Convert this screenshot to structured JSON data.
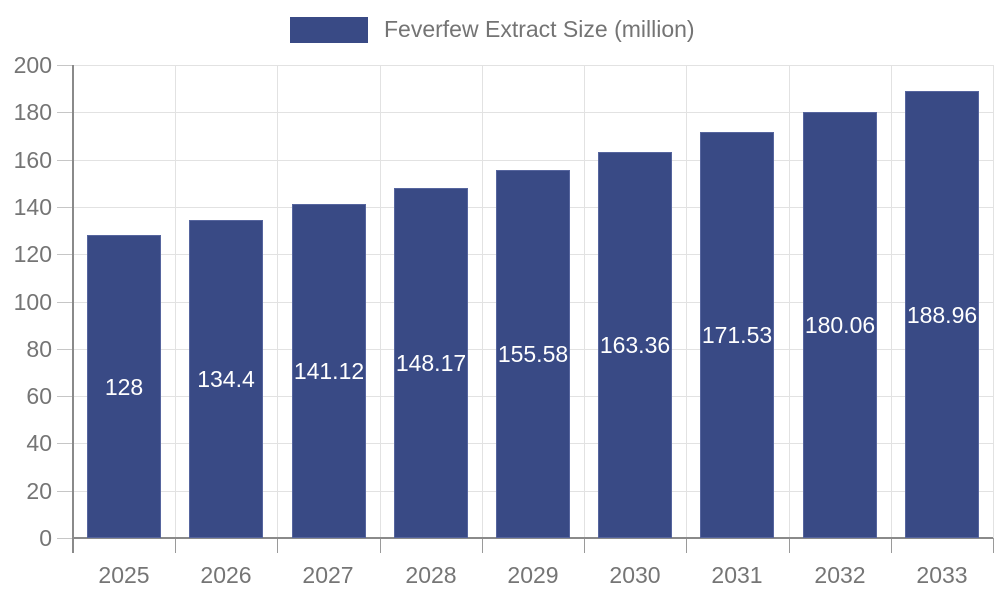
{
  "chart_data": {
    "type": "bar",
    "title": "Feverfew Extract Size (million)",
    "categories": [
      "2025",
      "2026",
      "2027",
      "2028",
      "2029",
      "2030",
      "2031",
      "2032",
      "2033"
    ],
    "values": [
      128,
      134.4,
      141.12,
      148.17,
      155.58,
      163.36,
      171.53,
      180.06,
      188.96
    ],
    "xlabel": "",
    "ylabel": "",
    "ylim": [
      0,
      200
    ],
    "yticks": [
      0,
      20,
      40,
      60,
      80,
      100,
      120,
      140,
      160,
      180,
      200
    ],
    "grid": true,
    "legend_position": "top",
    "value_label_position": "inside-middle",
    "bar_color": "#394A85",
    "bar_border_color": "#56659E",
    "value_label_color": "#ffffff",
    "axis_text_color": "#757575",
    "grid_color": "#e2e2e2"
  }
}
